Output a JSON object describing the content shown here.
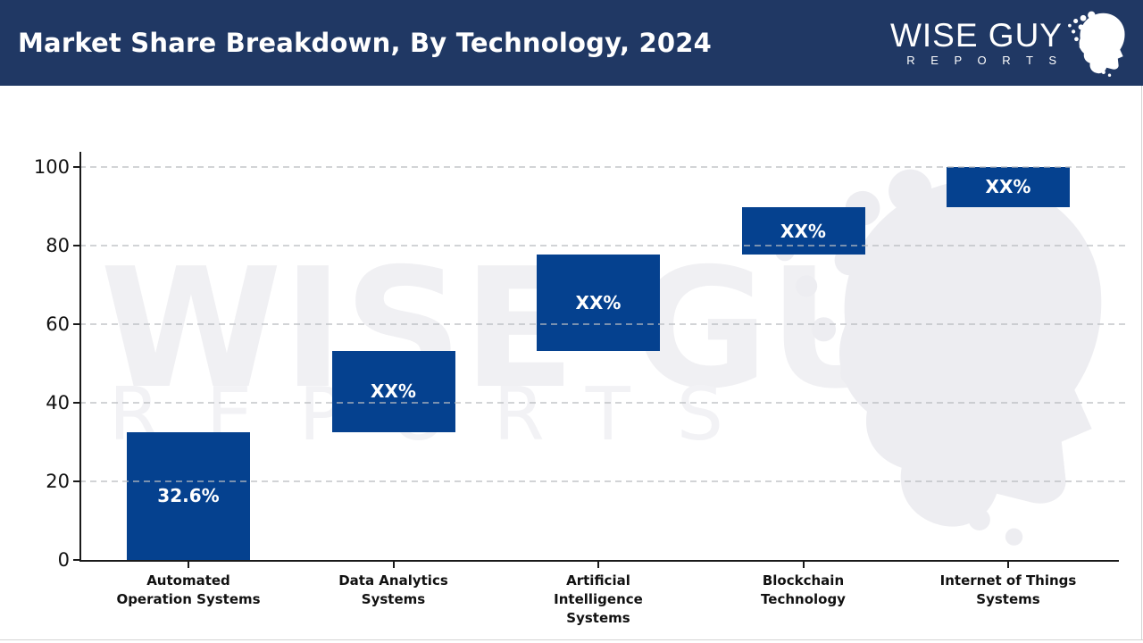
{
  "header": {
    "title": "Market Share Breakdown, By Technology, 2024",
    "bg_color": "#203864",
    "logo": {
      "line1": "WISE GUY",
      "line2": "R E P O R T S"
    }
  },
  "watermark": {
    "line1": "WISE GUY",
    "line2": "REPORTS"
  },
  "chart_data": {
    "type": "bar",
    "subtype": "floating-segment-waterfall",
    "title": "Market Share Breakdown, By Technology, 2024",
    "categories": [
      "Automated\nOperation Systems",
      "Data Analytics\nSystems",
      "Artificial\nIntelligence\nSystems",
      "Blockchain\nTechnology",
      "Internet of Things\nSystems"
    ],
    "segments": [
      {
        "category": "Automated Operation Systems",
        "start": 0,
        "end": 32.6,
        "label": "32.6%"
      },
      {
        "category": "Data Analytics Systems",
        "start": 32.6,
        "end": 53.2,
        "label": "XX%"
      },
      {
        "category": "Artificial Intelligence Systems",
        "start": 53.2,
        "end": 77.7,
        "label": "XX%"
      },
      {
        "category": "Blockchain Technology",
        "start": 77.7,
        "end": 89.8,
        "label": "XX%"
      },
      {
        "category": "Internet of Things Systems",
        "start": 89.8,
        "end": 100,
        "label": "XX%"
      }
    ],
    "ylim": [
      0,
      100
    ],
    "yticks": [
      0,
      20,
      40,
      60,
      80,
      100
    ],
    "grid": true,
    "grid_style": "dashed",
    "bar_color": "#05418F",
    "bar_label_color": "#ffffff",
    "legend_position": "none"
  }
}
